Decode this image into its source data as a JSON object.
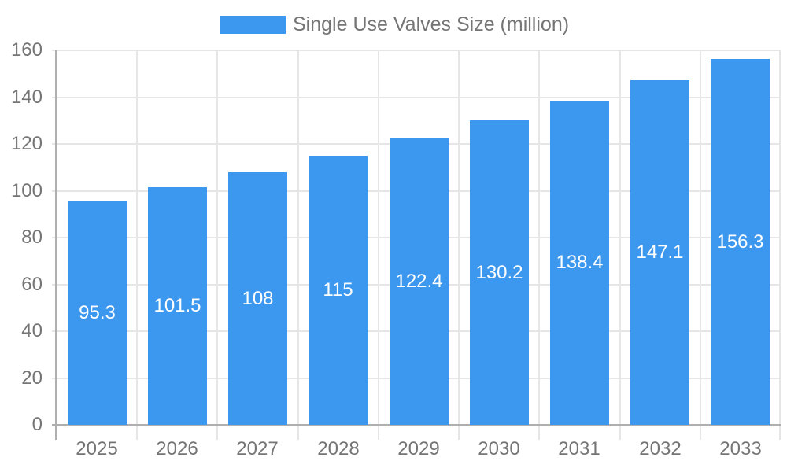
{
  "legend": {
    "label": "Single Use Valves Size (million)"
  },
  "chart_data": {
    "type": "bar",
    "title": "",
    "xlabel": "",
    "ylabel": "",
    "categories": [
      "2025",
      "2026",
      "2027",
      "2028",
      "2029",
      "2030",
      "2031",
      "2032",
      "2033"
    ],
    "series": [
      {
        "name": "Single Use Valves Size (million)",
        "values": [
          95.3,
          101.5,
          108,
          115,
          122.4,
          130.2,
          138.4,
          147.1,
          156.3
        ],
        "labels": [
          "95.3",
          "101.5",
          "108",
          "115",
          "122.4",
          "130.2",
          "138.4",
          "147.1",
          "156.3"
        ]
      }
    ],
    "ylim": [
      0,
      160
    ],
    "yticks": [
      0,
      20,
      40,
      60,
      80,
      100,
      120,
      140,
      160
    ],
    "ytick_labels": [
      "0",
      "20",
      "40",
      "60",
      "80",
      "100",
      "120",
      "140",
      "160"
    ],
    "grid": true,
    "legend_position": "top",
    "value_label_position": "inside-center"
  },
  "colors": {
    "bar": "#3C97EE",
    "value_label": "#FFFFFF",
    "axis_text": "#757575",
    "gridline": "#E6E6E6",
    "axis_line": "#AFAFAF",
    "background": "#FFFFFF"
  }
}
